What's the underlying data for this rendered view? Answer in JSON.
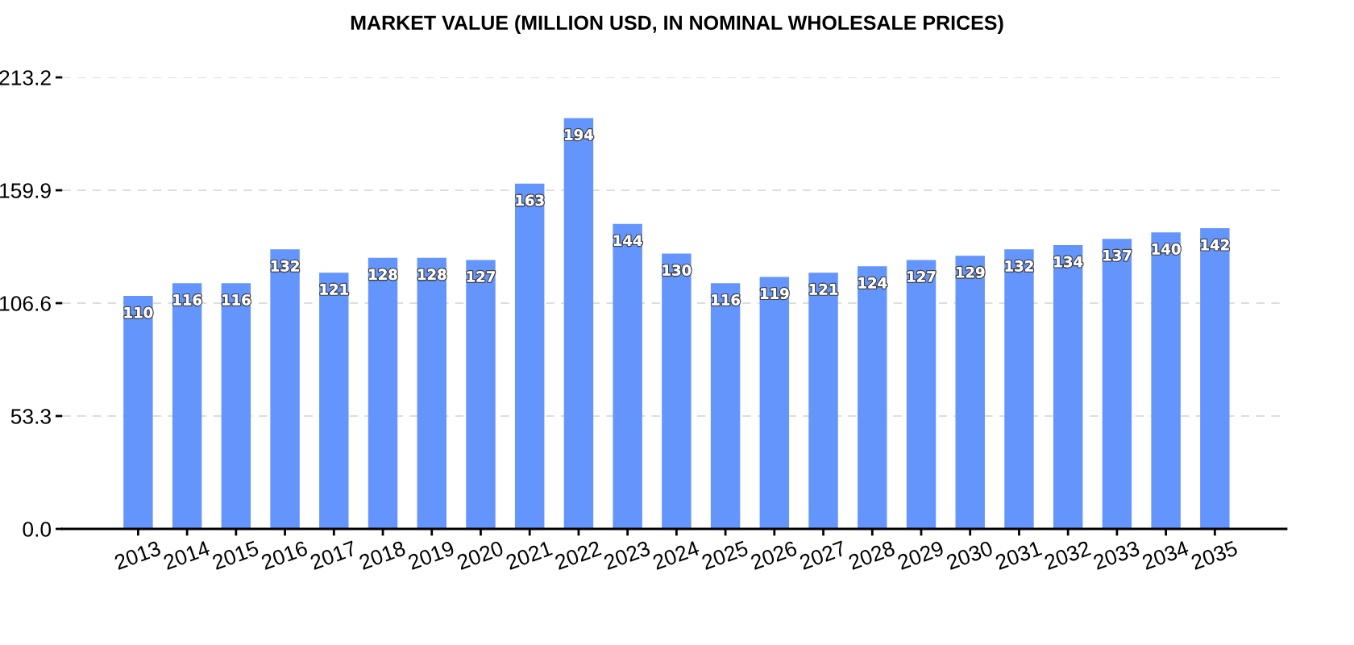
{
  "chart_data": {
    "type": "bar",
    "title": "MARKET VALUE (MILLION USD, IN NOMINAL WHOLESALE PRICES)",
    "categories": [
      "2013",
      "2014",
      "2015",
      "2016",
      "2017",
      "2018",
      "2019",
      "2020",
      "2021",
      "2022",
      "2023",
      "2024",
      "2025",
      "2026",
      "2027",
      "2028",
      "2029",
      "2030",
      "2031",
      "2032",
      "2033",
      "2034",
      "2035"
    ],
    "values": [
      110,
      116,
      116,
      132,
      121,
      128,
      128,
      127,
      163,
      194,
      144,
      130,
      116,
      119,
      121,
      124,
      127,
      129,
      132,
      134,
      137,
      140,
      142
    ],
    "color": "#6495fd",
    "ylim": [
      0,
      213.2
    ],
    "yticks": [
      {
        "value": 0,
        "label": "0.0"
      },
      53.3,
      106.6,
      159.9,
      213.2
    ],
    "grid": "y",
    "data_labels": true
  }
}
